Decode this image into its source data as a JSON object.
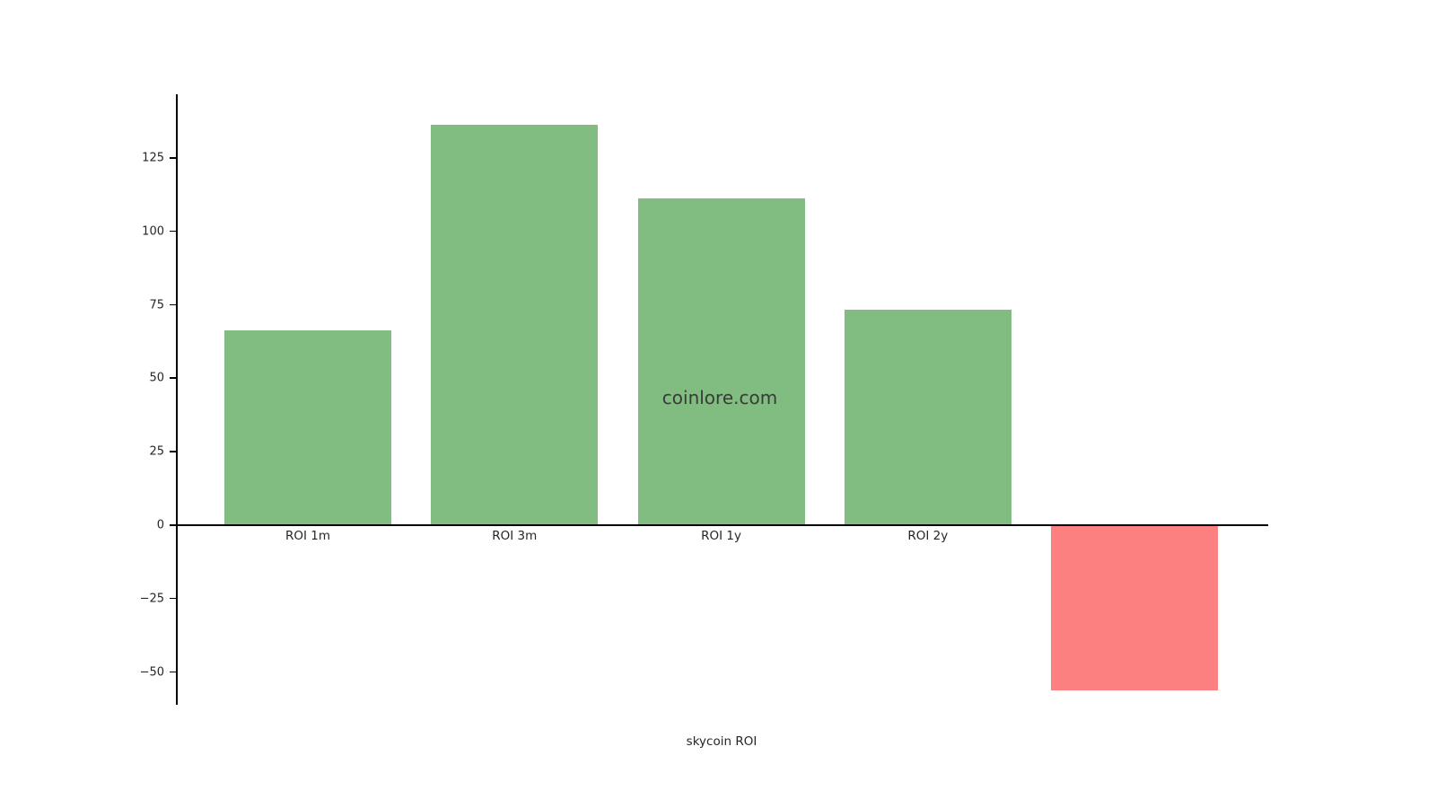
{
  "chart_data": {
    "type": "bar",
    "title": "",
    "categories": [
      "ROI 1m",
      "ROI 3m",
      "ROI 1y",
      "ROI 2y",
      ""
    ],
    "values": [
      66,
      136,
      111,
      73,
      -56
    ],
    "series": [
      {
        "name": "skycoin ROI %",
        "values": [
          66,
          136,
          111,
          73,
          -56
        ]
      }
    ],
    "yticks": [
      125,
      100,
      75,
      50,
      25,
      0,
      -25,
      -50
    ],
    "ylim": [
      -61,
      146
    ],
    "xlabel": "skycoin ROI",
    "ylabel": "",
    "grid": false,
    "legend_position": "none",
    "watermark": "coinlore.com",
    "colors": {
      "positive_bar": "#81bd80",
      "negative_bar": "#fc8080",
      "axis": "#000000",
      "tick_text": "#262626",
      "watermark_text": "#3a3a3a",
      "background": "#ffffff"
    }
  }
}
